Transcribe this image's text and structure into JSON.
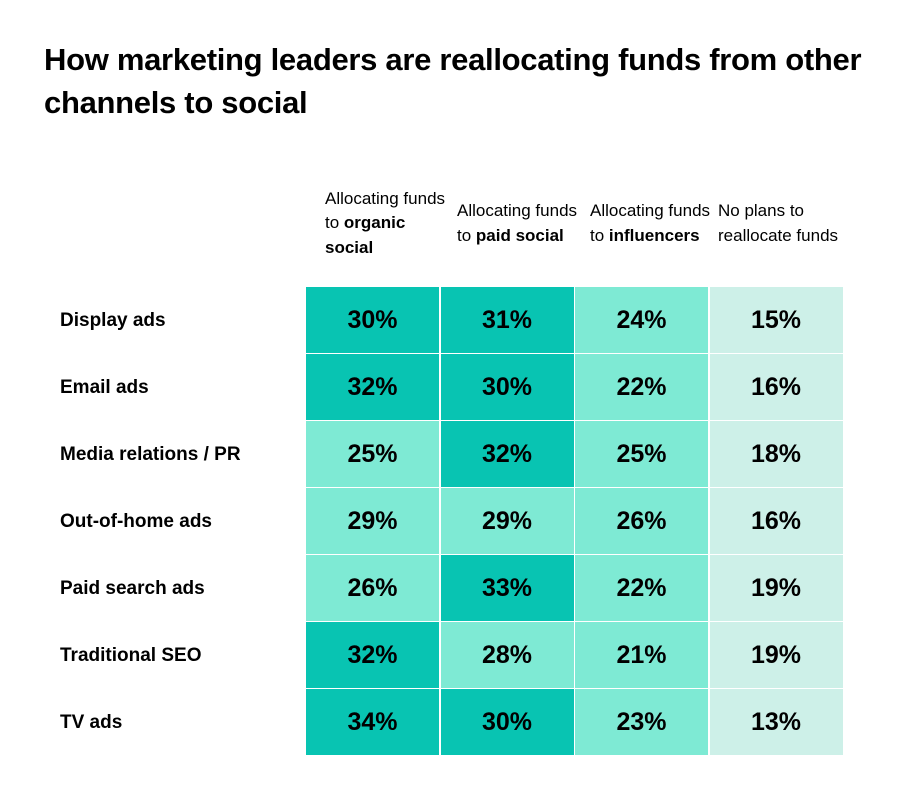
{
  "chart_data": {
    "type": "heatmap",
    "title": "How marketing leaders are reallocating funds from other channels to social",
    "columns": [
      {
        "normal": "Allocating funds to",
        "bold": "organic social"
      },
      {
        "normal": "Allocating funds to",
        "bold": "paid social"
      },
      {
        "normal": "Allocating funds to",
        "bold": "influencers"
      },
      {
        "normal": "No plans to reallocate funds",
        "bold": ""
      }
    ],
    "rows": [
      "Display ads",
      "Email ads",
      "Media relations / PR",
      "Out-of-home ads",
      "Paid search ads",
      "Traditional SEO",
      "TV ads"
    ],
    "values": [
      [
        30,
        31,
        24,
        15
      ],
      [
        32,
        30,
        22,
        16
      ],
      [
        25,
        32,
        25,
        18
      ],
      [
        29,
        29,
        26,
        16
      ],
      [
        26,
        33,
        22,
        19
      ],
      [
        32,
        28,
        21,
        19
      ],
      [
        34,
        30,
        23,
        13
      ]
    ],
    "unit": "%",
    "colors": {
      "high": "#08c4b2",
      "mid": "#7eead4",
      "low": "#cdf0e8"
    }
  }
}
